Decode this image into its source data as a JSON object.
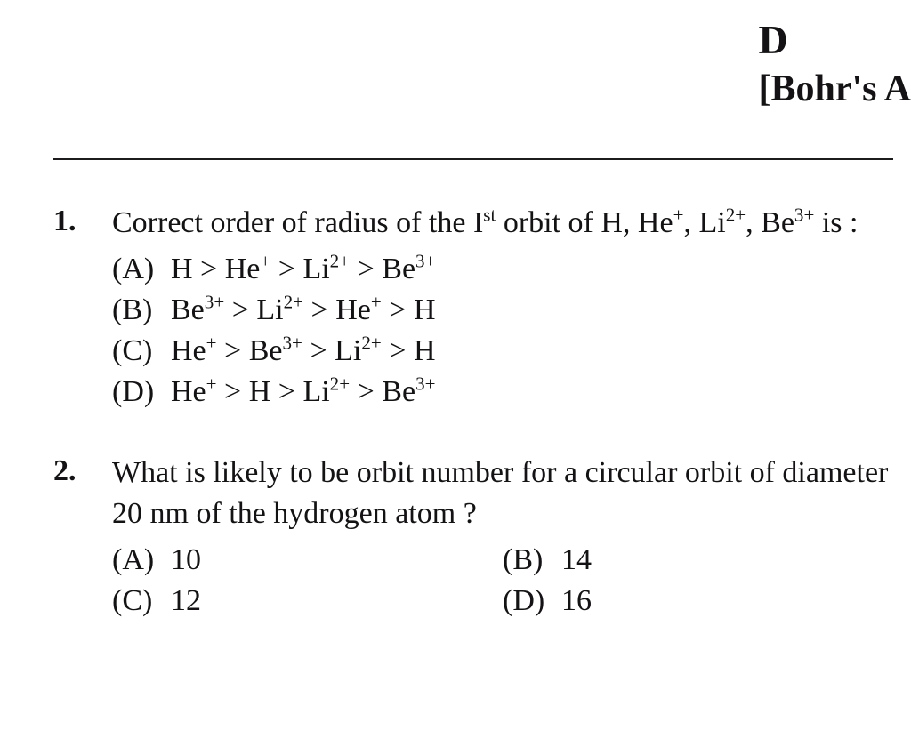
{
  "colors": {
    "text": "#141214",
    "rule": "#1d1b1d",
    "background": "#ffffff"
  },
  "fonts": {
    "family": "Times New Roman",
    "stem_size_pt": 26,
    "weight_bold": 700
  },
  "header": {
    "corner_letter": "D",
    "subtitle": "[Bohr's A"
  },
  "questions": [
    {
      "number": "1.",
      "stem_html": "Correct order of radius of the I<sup>st</sup> orbit of H, He<sup>+</sup>, Li<sup>2+</sup>, Be<sup>3+</sup> is :",
      "layout": "single",
      "options": [
        {
          "label": "(A)",
          "html": "H > He<sup>+</sup> > Li<sup>2+</sup> > Be<sup>3+</sup>"
        },
        {
          "label": "(B)",
          "html": "Be<sup>3+</sup> > Li<sup>2+</sup> > He<sup>+</sup> > H"
        },
        {
          "label": "(C)",
          "html": "He<sup>+</sup> > Be<sup>3+</sup> > Li<sup>2+</sup> > H"
        },
        {
          "label": "(D)",
          "html": "He<sup>+</sup> > H > Li<sup>2+</sup> > Be<sup>3+</sup>"
        }
      ]
    },
    {
      "number": "2.",
      "stem_html": "What is likely to be orbit number for a circular orbit of diameter 20 nm of the hydrogen atom ?",
      "layout": "two-col",
      "options": [
        {
          "label": "(A)",
          "html": "10"
        },
        {
          "label": "(B)",
          "html": "14"
        },
        {
          "label": "(C)",
          "html": "12"
        },
        {
          "label": "(D)",
          "html": "16"
        }
      ]
    }
  ]
}
